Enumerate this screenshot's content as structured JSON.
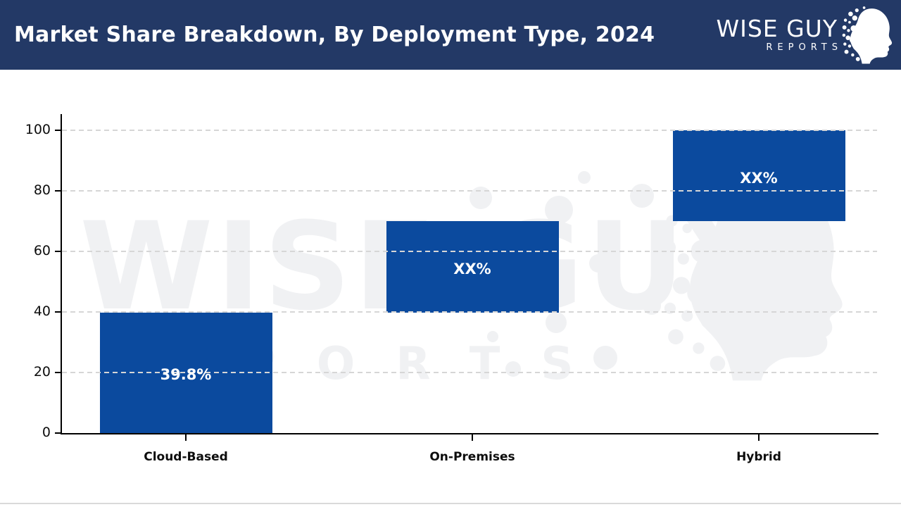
{
  "header": {
    "title": "Market Share Breakdown, By Deployment Type, 2024",
    "logo": {
      "primary": "WISE GUY",
      "secondary": "REPORTS"
    }
  },
  "watermark": {
    "primary": "WISE GUY",
    "secondary": "REPORTS"
  },
  "colors": {
    "header_bg": "#233966",
    "bar": "#0b4a9e",
    "gridline": "#d6d6d6",
    "watermark": "#f0f1f3",
    "bar_label": "#ffffff",
    "axis": "#000000"
  },
  "chart_data": {
    "type": "bar",
    "variant": "waterfall",
    "title": "Market Share Breakdown, By Deployment Type, 2024",
    "categories": [
      "Cloud-Based",
      "On-Premises",
      "Hybrid"
    ],
    "segments": [
      {
        "category": "Cloud-Based",
        "start": 0,
        "end": 39.8,
        "label": "39.8%"
      },
      {
        "category": "On-Premises",
        "start": 39.8,
        "end": 69.9,
        "label": "XX%"
      },
      {
        "category": "Hybrid",
        "start": 69.9,
        "end": 100,
        "label": "XX%"
      }
    ],
    "yticks": [
      0,
      20,
      40,
      60,
      80,
      100
    ],
    "ylim": [
      0,
      105
    ],
    "grid": "horizontal-dashed",
    "grid_above_bars": true,
    "legend": "none",
    "xlabel": "",
    "ylabel": ""
  }
}
